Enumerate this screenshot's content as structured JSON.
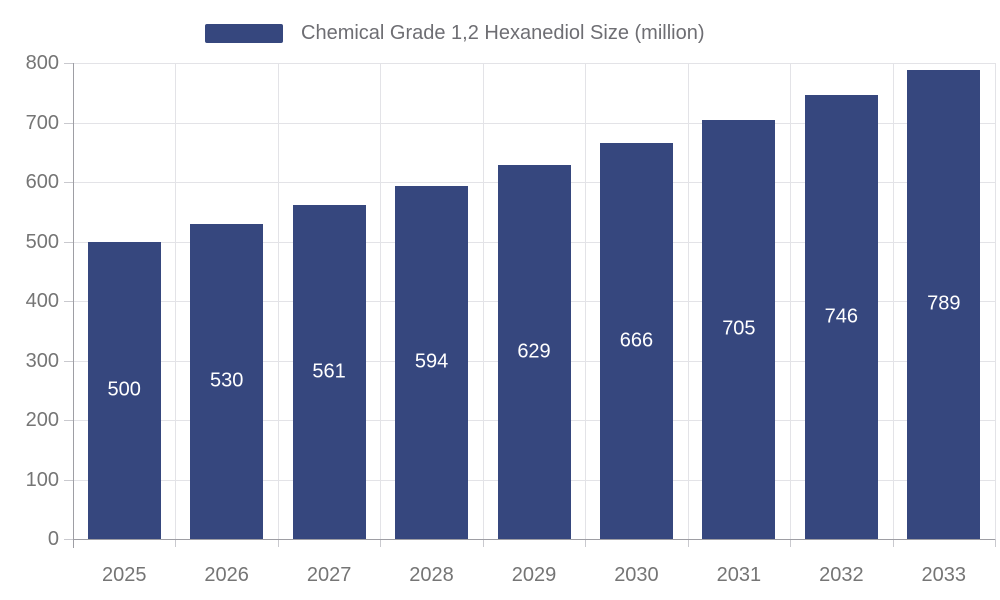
{
  "legend": {
    "label": "Chemical Grade 1,2 Hexanediol Size (million)",
    "marker_color": "#36477e"
  },
  "chart_data": {
    "type": "bar",
    "title": "Chemical Grade 1,2 Hexanediol Size (million)",
    "categories": [
      "2025",
      "2026",
      "2027",
      "2028",
      "2029",
      "2030",
      "2031",
      "2032",
      "2033"
    ],
    "values": [
      500,
      530,
      561,
      594,
      629,
      666,
      705,
      746,
      789
    ],
    "xlabel": "",
    "ylabel": "",
    "ylim": [
      0,
      800
    ],
    "yticks": [
      0,
      100,
      200,
      300,
      400,
      500,
      600,
      700,
      800
    ],
    "grid": true,
    "legend_position": "top",
    "bar_labels_visible": true,
    "colors": {
      "bar": "#36477e",
      "bar_label": "#ffffff",
      "axis_text": "#757575",
      "legend_text": "#6e6e73",
      "grid_line": "#e3e3e7",
      "axis_line": "#9e9ea4",
      "tick": "#c9c9ce",
      "background": "#ffffff"
    }
  }
}
